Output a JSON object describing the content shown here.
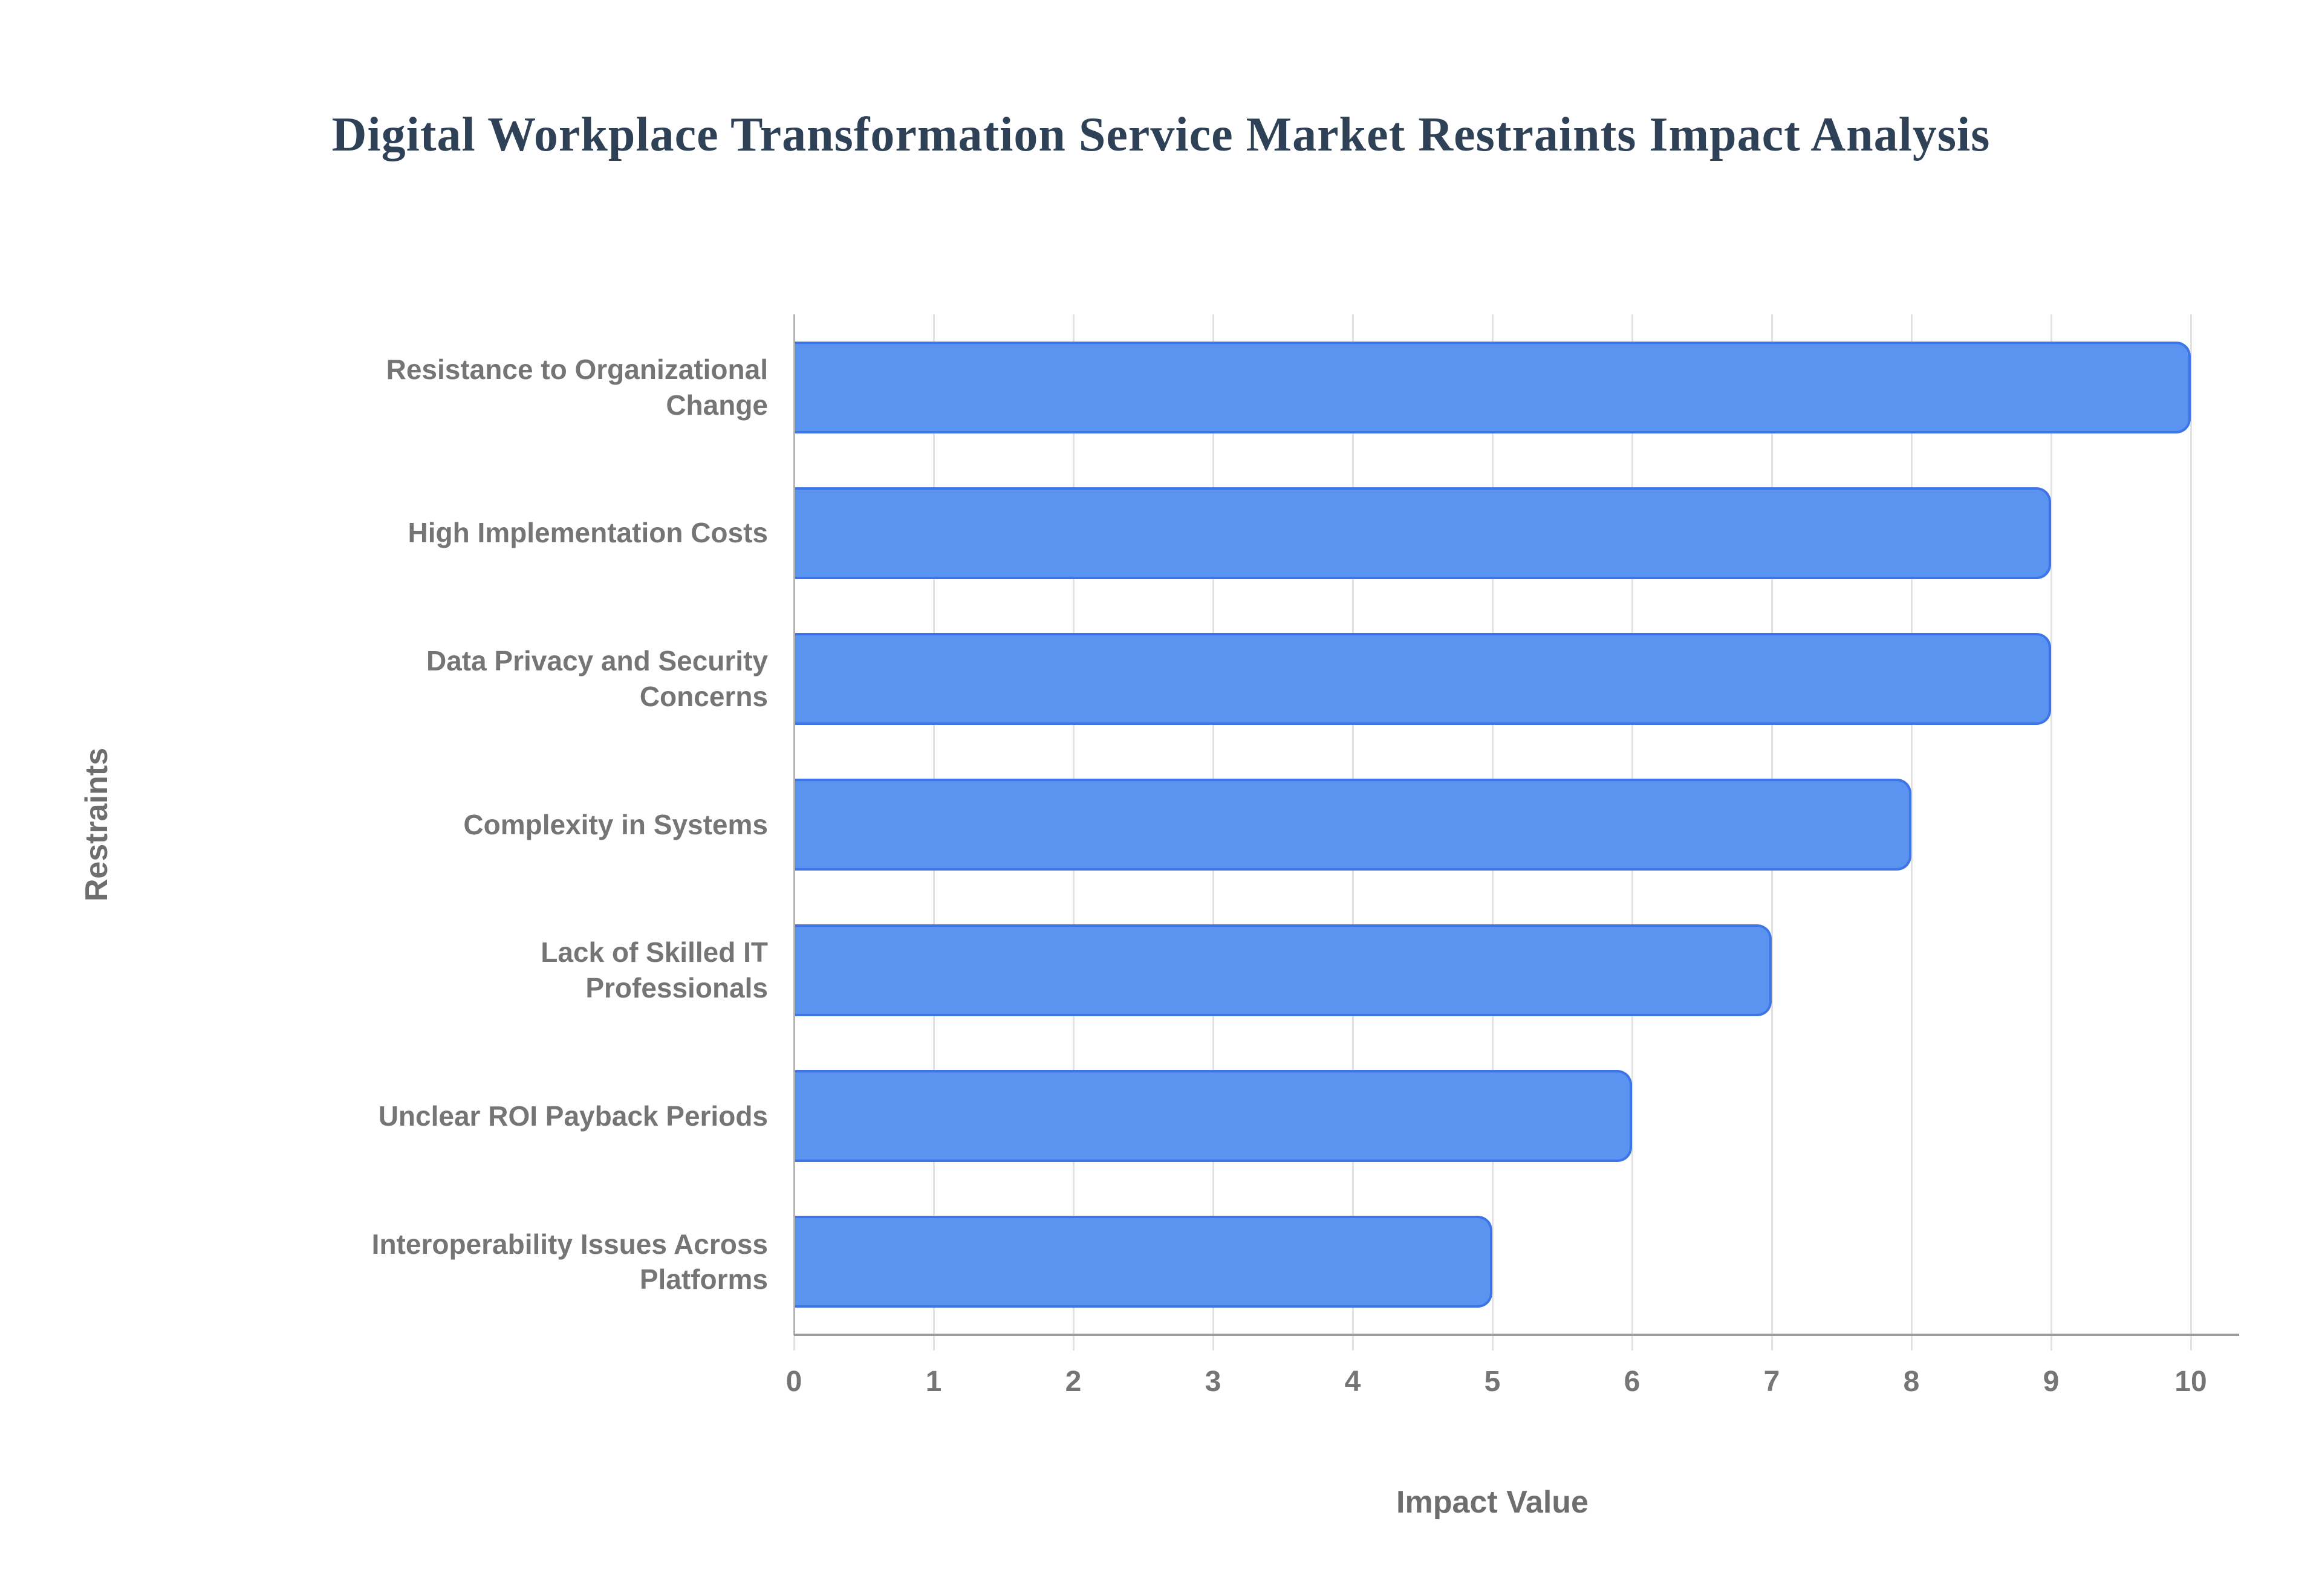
{
  "chart_data": {
    "type": "bar",
    "orientation": "horizontal",
    "title": "Digital Workplace Transformation Service Market Restraints Impact Analysis",
    "xlabel": "Impact Value",
    "ylabel": "Restraints",
    "categories": [
      "Resistance to Organizational Change",
      "High Implementation Costs",
      "Data Privacy and Security Concerns",
      "Complexity in Systems",
      "Lack of Skilled IT Professionals",
      "Unclear ROI Payback Periods",
      "Interoperability Issues Across Platforms"
    ],
    "categories_wrapped": [
      "Resistance to Organizational\nChange",
      "High Implementation Costs",
      "Data Privacy and Security\nConcerns",
      "Complexity in Systems",
      "Lack of Skilled IT\nProfessionals",
      "Unclear ROI Payback Periods",
      "Interoperability Issues Across\nPlatforms"
    ],
    "values": [
      10,
      9,
      9,
      8,
      7,
      6,
      5
    ],
    "xlim": [
      0,
      10
    ],
    "xticks": [
      0,
      1,
      2,
      3,
      4,
      5,
      6,
      7,
      8,
      9,
      10
    ],
    "grid": true,
    "legend": "none",
    "colors": {
      "bar_fill": "#5b93f1",
      "bar_border": "#3d74e8",
      "title_text": "#2e4156",
      "axis_title_text": "#6e6e6e",
      "tick_text": "#757575",
      "gridline": "#e2e2e2",
      "axis_line": "#9b9b9b"
    }
  }
}
